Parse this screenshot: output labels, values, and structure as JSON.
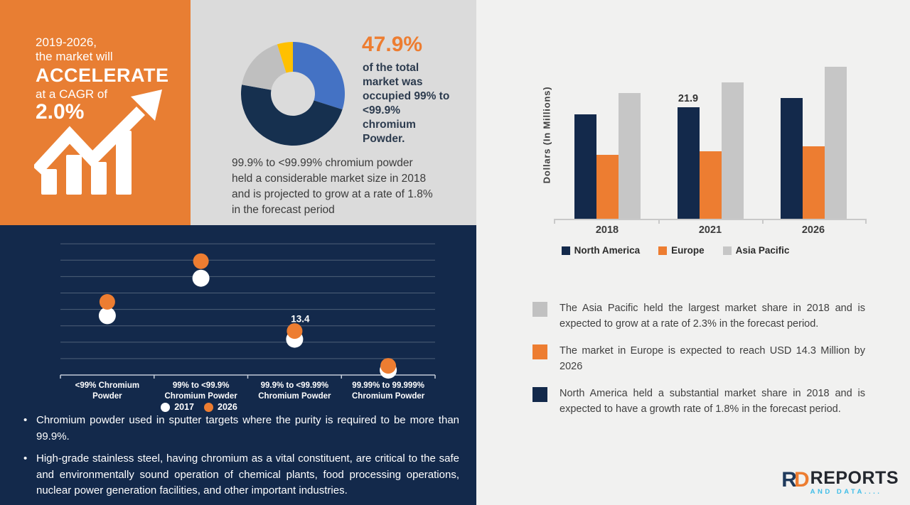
{
  "left_panel": {
    "period": "2019-2026,",
    "line2": "the market will",
    "accelerate": "ACCELERATE",
    "cagr_prefix": "at a CAGR of",
    "cagr_value": "2.0%"
  },
  "middle_panel": {
    "highlight_value": "47.9%",
    "highlight_text": "of the total market was occupied 99% to <99.9% chromium Powder.",
    "paragraph": "99.9% to <99.99% chromium powder held a considerable market size in 2018 and is projected to grow at a rate of 1.8% in the forecast period"
  },
  "bullets": [
    "Chromium powder used in sputter targets where the purity is required to be more than 99.9%.",
    "High-grade stainless steel, having chromium as a vital constituent, are critical to the safe and environmentally sound operation of chemical plants, food processing operations, nuclear power generation facilities, and other important industries."
  ],
  "right_panel": {
    "annotations": [
      {
        "color": "#C1C1C1",
        "text": "The Asia Pacific held the largest market share in 2018 and is expected to grow at a rate of 2.3% in the forecast period."
      },
      {
        "color": "#ED7D31",
        "text": "The market in Europe is expected to reach USD 14.3 Million by 2026"
      },
      {
        "color": "#13294B",
        "text": "North America held a substantial market share in 2018 and is expected to have a growth rate of 1.8% in the forecast period."
      }
    ],
    "logo": {
      "mark_r": "R",
      "mark_d": "D",
      "reports": "REPORTS",
      "and_data": "AND DATA...."
    }
  },
  "chart_data": [
    {
      "type": "pie",
      "subtype": "donut",
      "values": [
        29.9,
        47.9,
        17.3,
        4.9
      ],
      "colors": [
        "#4472C4",
        "#16304F",
        "#BFBFBF",
        "#FFC000"
      ],
      "highlight": {
        "value": "47.9%",
        "label": "99% to <99.9% chromium Powder"
      },
      "legend_position": "none"
    },
    {
      "type": "scatter",
      "categories": [
        "<99% Chromium Powder",
        "99% to <99.9%\nChromium Powder",
        "99.9% to <99.99%\nChromium Powder",
        "99.99% to 99.999%\nChromium Powder"
      ],
      "series": [
        {
          "name": "2017",
          "color": "#FFFFFF",
          "values": [
            18.1,
            29.5,
            10.9,
            1.5
          ]
        },
        {
          "name": "2026",
          "color": "#ED7D31",
          "values": [
            22.3,
            34.7,
            13.4,
            2.8
          ]
        }
      ],
      "point_label": {
        "series": "2026",
        "category_index": 2,
        "text": "13.4"
      },
      "ylim": [
        0,
        40
      ],
      "grid_step": 5,
      "grid": true,
      "legend_position": "bottom"
    },
    {
      "type": "bar",
      "categories": [
        "2018",
        "2021",
        "2026"
      ],
      "series": [
        {
          "name": "North America",
          "color": "#13294B",
          "values": [
            20.5,
            21.9,
            23.7
          ]
        },
        {
          "name": "Europe",
          "color": "#ED7D31",
          "values": [
            12.5,
            13.3,
            14.3
          ]
        },
        {
          "name": "Asia Pacific",
          "color": "#C6C6C6",
          "values": [
            24.7,
            26.8,
            29.9
          ]
        }
      ],
      "ylabel": "Dollars (In Millions)",
      "point_label": {
        "series": "North America",
        "category_index": 1,
        "text": "21.9"
      },
      "ylim": [
        0,
        31
      ],
      "legend_position": "bottom"
    }
  ]
}
